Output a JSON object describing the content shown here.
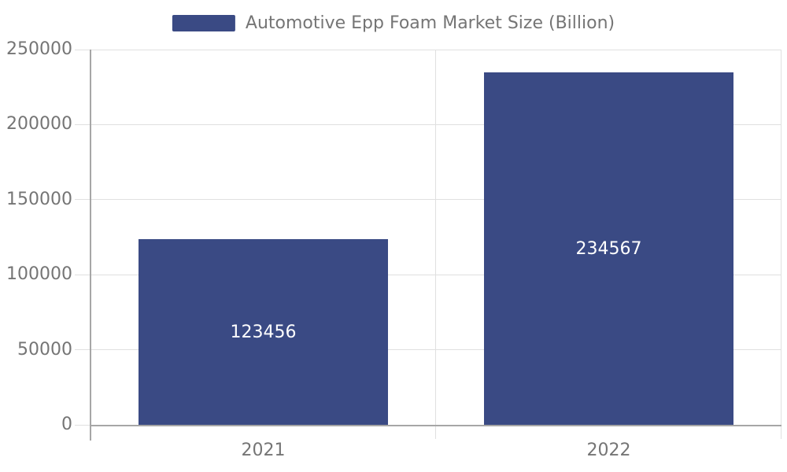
{
  "legend": {
    "label": "Automotive Epp Foam Market Size (Billion)"
  },
  "colors": {
    "bar": "#3a4a84",
    "grid": "#e0e0e0",
    "axis": "#a6a6a6",
    "text": "#757575",
    "bar_label": "#ffffff",
    "background": "#ffffff"
  },
  "chart_data": {
    "type": "bar",
    "title": "Automotive Epp Foam Market Size (Billion)",
    "series_name": "Automotive Epp Foam Market Size (Billion)",
    "categories": [
      "2021",
      "2022"
    ],
    "values": [
      123456,
      234567
    ],
    "bar_labels": [
      "123456",
      "234567"
    ],
    "xlabel": "",
    "ylabel": "",
    "ylim": [
      0,
      250000
    ],
    "yticks": [
      0,
      50000,
      100000,
      150000,
      200000,
      250000
    ],
    "grid": true,
    "legend_position": "top",
    "bar_label_position": "center"
  }
}
